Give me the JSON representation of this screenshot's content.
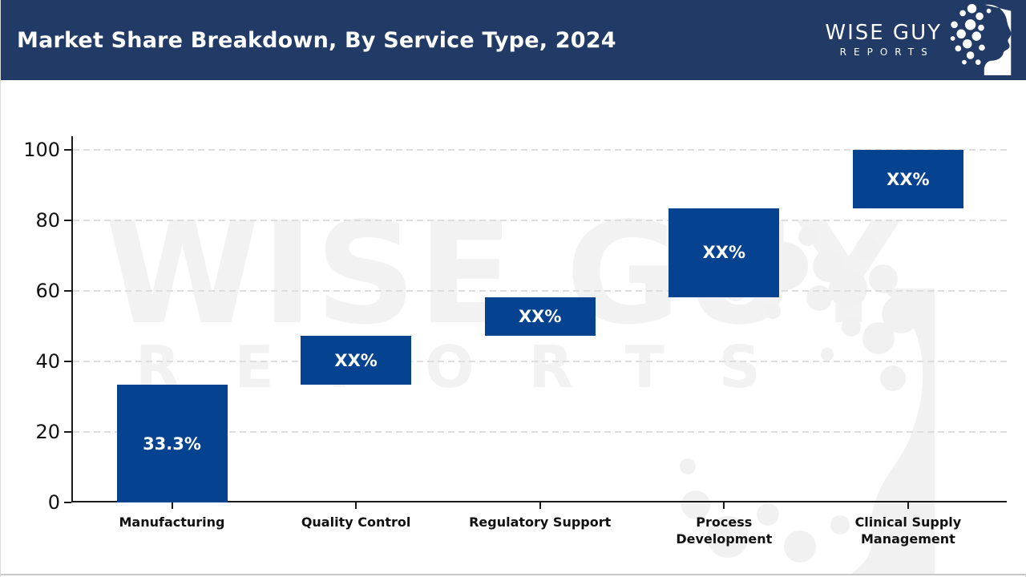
{
  "header": {
    "title": "Market Share Breakdown, By Service Type, 2024",
    "logo": {
      "wordmark": "WISE GUY",
      "subtext": "REPORTS",
      "icon": "dotted-face-profile-icon"
    }
  },
  "watermark": {
    "wordmark": "WISE GUY",
    "subtext": "REPORTS",
    "icon": "dotted-face-profile-icon"
  },
  "colors": {
    "header_bg": "#213a66",
    "bar": "#05428f",
    "bar_label": "#ffffff",
    "grid": "#dedede",
    "axis": "#1a1a1a",
    "watermark": "#f2f2f2",
    "bottom_rule": "#c8c8c8"
  },
  "chart_data": {
    "type": "bar",
    "subtype": "waterfall",
    "title": "Market Share Breakdown, By Service Type, 2024",
    "xlabel": "",
    "ylabel": "",
    "ylim": [
      0,
      100
    ],
    "yticks": [
      0,
      20,
      40,
      60,
      80,
      100
    ],
    "grid": "horizontal-dashed",
    "legend": "none",
    "categories": [
      "Manufacturing",
      "Quality Control",
      "Regulatory Support",
      "Process Development",
      "Clinical Supply Management"
    ],
    "category_label_lines": [
      [
        "Manufacturing"
      ],
      [
        "Quality Control"
      ],
      [
        "Regulatory Support"
      ],
      [
        "Process",
        "Development"
      ],
      [
        "Clinical Supply",
        "Management"
      ]
    ],
    "segments": [
      {
        "name": "Manufacturing",
        "label": "33.3%",
        "start": 0,
        "end": 33.3,
        "value": 33.3
      },
      {
        "name": "Quality Control",
        "label": "XX%",
        "start": 33.3,
        "end": 47.3,
        "value": 14.0
      },
      {
        "name": "Regulatory Support",
        "label": "XX%",
        "start": 47.3,
        "end": 58.2,
        "value": 10.9
      },
      {
        "name": "Process Development",
        "label": "XX%",
        "start": 58.2,
        "end": 83.4,
        "value": 25.2
      },
      {
        "name": "Clinical Supply Management",
        "label": "XX%",
        "start": 83.4,
        "end": 100,
        "value": 16.6
      }
    ]
  }
}
